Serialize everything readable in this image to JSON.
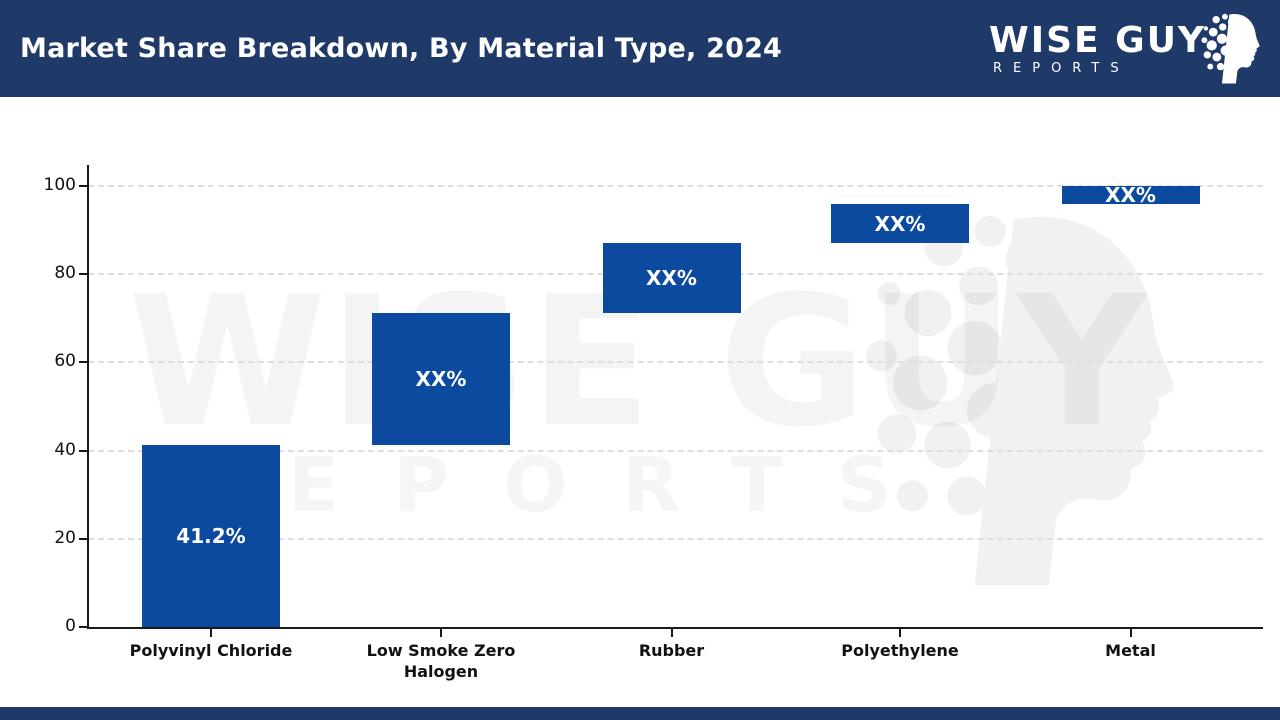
{
  "header": {
    "title": "Market Share Breakdown, By Material Type, 2024",
    "background_color": "#1f3a68",
    "logo": {
      "wordmark": "WISE GUY",
      "subtext": "REPORTS"
    }
  },
  "watermark": {
    "line1": "WISE GUY",
    "line2": "REPORTS"
  },
  "chart_data": {
    "type": "bar",
    "subtype": "waterfall",
    "title": "Market Share Breakdown, By Material Type, 2024",
    "unit": "%",
    "categories": [
      "Polyvinyl Chloride",
      "Low Smoke Zero Halogen",
      "Rubber",
      "Polyethylene",
      "Metal"
    ],
    "segments": [
      {
        "category": "Polyvinyl Chloride",
        "start": 0,
        "end": 41.2,
        "label": "41.2%"
      },
      {
        "category": "Low Smoke Zero Halogen",
        "start": 41.2,
        "end": 71.2,
        "label": "XX%"
      },
      {
        "category": "Rubber",
        "start": 71.2,
        "end": 87.0,
        "label": "XX%"
      },
      {
        "category": "Polyethylene",
        "start": 87.0,
        "end": 95.9,
        "label": "XX%"
      },
      {
        "category": "Metal",
        "start": 95.9,
        "end": 100.0,
        "label": "XX%"
      }
    ],
    "yticks": [
      0,
      20,
      40,
      60,
      80,
      100
    ],
    "ylim": [
      0,
      105
    ],
    "xlabel": "",
    "ylabel": "",
    "grid": "horizontal-dashed",
    "legend": "none",
    "bar_color": "#0c4a9f",
    "bar_label_color": "#ffffff",
    "axis_color": "#1a1a1a",
    "footer_color": "#1f3a68"
  }
}
